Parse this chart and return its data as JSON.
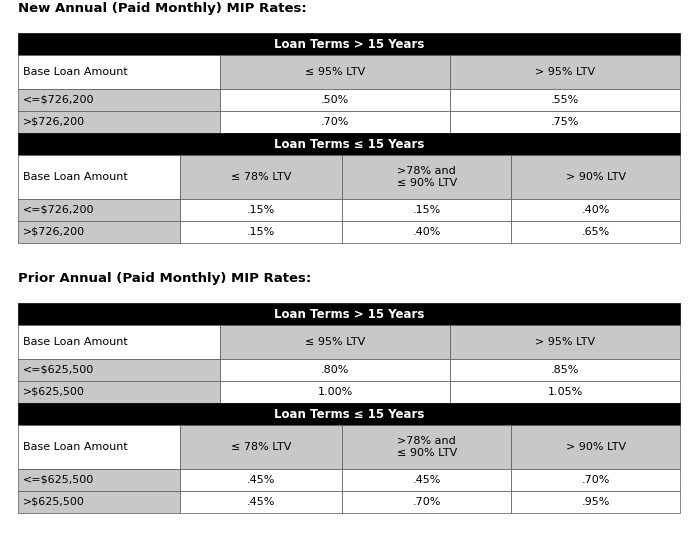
{
  "title1": "New Annual (Paid Monthly) MIP Rates:",
  "title2": "Prior Annual (Paid Monthly) MIP Rates:",
  "black": "#000000",
  "white": "#ffffff",
  "lgray": "#c8c8c8",
  "bg": "#ffffff",
  "new_s1_header": "Loan Terms > 15 Years",
  "new_s1_col_headers": [
    "Base Loan Amount",
    "≤ 95% LTV",
    "> 95% LTV"
  ],
  "new_s1_rows": [
    [
      "<=$726,200",
      ".50%",
      ".55%"
    ],
    [
      ">$726,200",
      ".70%",
      ".75%"
    ]
  ],
  "new_s2_header": "Loan Terms ≤ 15 Years",
  "new_s2_col_headers": [
    "Base Loan Amount",
    "≤ 78% LTV",
    ">78% and\n≤ 90% LTV",
    "> 90% LTV"
  ],
  "new_s2_rows": [
    [
      "<=$726,200",
      ".15%",
      ".15%",
      ".40%"
    ],
    [
      ">$726,200",
      ".15%",
      ".40%",
      ".65%"
    ]
  ],
  "prior_s1_header": "Loan Terms > 15 Years",
  "prior_s1_col_headers": [
    "Base Loan Amount",
    "≤ 95% LTV",
    "> 95% LTV"
  ],
  "prior_s1_rows": [
    [
      "<=$625,500",
      ".80%",
      ".85%"
    ],
    [
      ">$625,500",
      "1.00%",
      "1.05%"
    ]
  ],
  "prior_s2_header": "Loan Terms ≤ 15 Years",
  "prior_s2_col_headers": [
    "Base Loan Amount",
    "≤ 78% LTV",
    ">78% and\n≤ 90% LTV",
    "> 90% LTV"
  ],
  "prior_s2_rows": [
    [
      "<=$625,500",
      ".45%",
      ".45%",
      ".70%"
    ],
    [
      ">$625,500",
      ".45%",
      ".70%",
      ".95%"
    ]
  ]
}
